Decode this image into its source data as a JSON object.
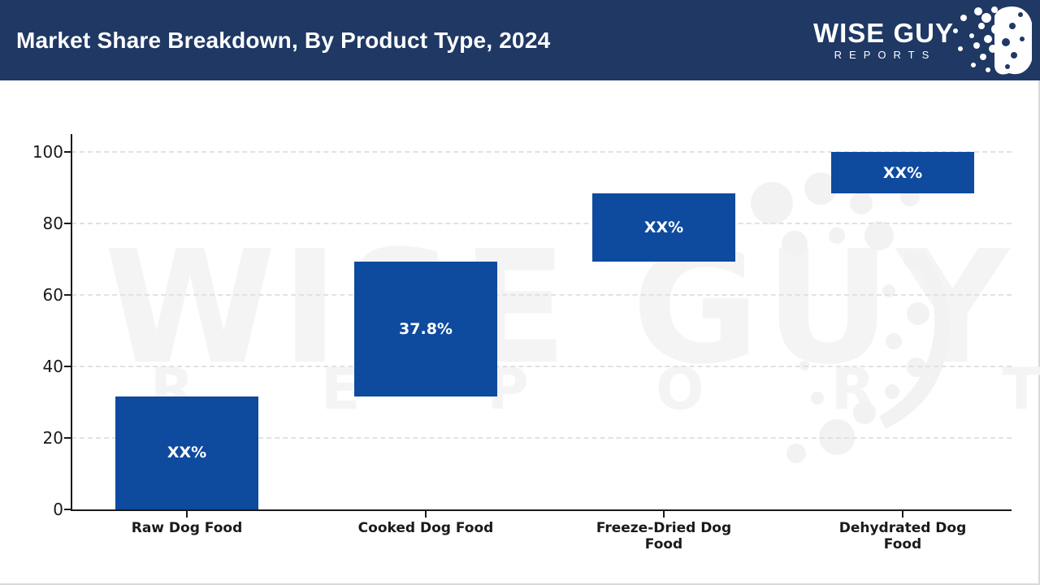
{
  "header": {
    "title": "Market Share Breakdown, By Product Type, 2024",
    "background_color": "#1f3864",
    "logo": {
      "line1": "WISE GUY",
      "line2": "REPORTS"
    }
  },
  "watermark": {
    "line1": "WISE GUY",
    "line2": "R E P O R T S"
  },
  "chart_data": {
    "type": "waterfall",
    "title": "Market Share Breakdown, By Product Type, 2024",
    "categories": [
      "Raw Dog Food",
      "Cooked Dog Food",
      "Freeze-Dried Dog Food",
      "Dehydrated Dog Food"
    ],
    "segments": [
      {
        "category": "Raw Dog Food",
        "start": 0,
        "end": 31.6,
        "value": 31.6,
        "label": "XX%"
      },
      {
        "category": "Cooked Dog Food",
        "start": 31.6,
        "end": 69.4,
        "value": 37.8,
        "label": "37.8%"
      },
      {
        "category": "Freeze-Dried Dog Food",
        "start": 69.4,
        "end": 88.3,
        "value": 18.9,
        "label": "XX%"
      },
      {
        "category": "Dehydrated Dog Food",
        "start": 88.3,
        "end": 100,
        "value": 11.7,
        "label": "XX%"
      }
    ],
    "yticks": [
      0,
      20,
      40,
      60,
      80,
      100
    ],
    "ylim": [
      0,
      100
    ],
    "grid": "dashed horizontal",
    "legend": "none",
    "bar_color": "#0e4a9e",
    "bar_label_color": "#ffffff",
    "axis_color": "#1a1a1a"
  }
}
